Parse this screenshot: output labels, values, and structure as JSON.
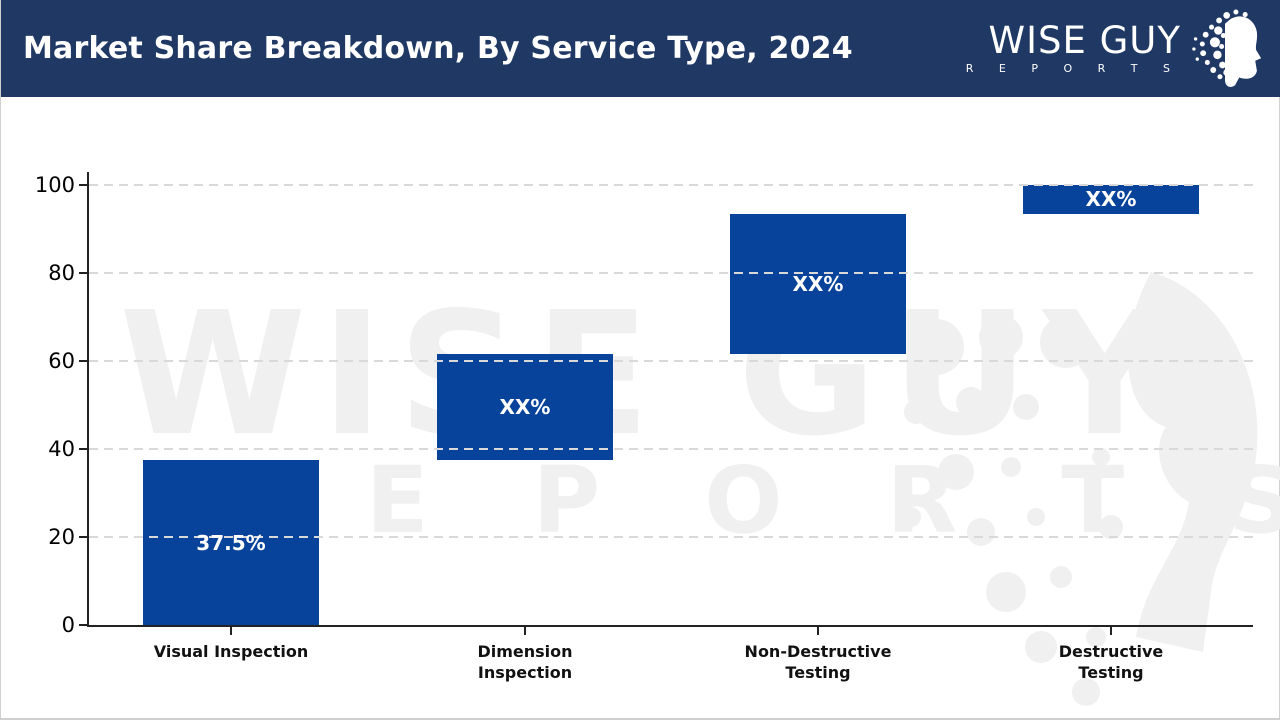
{
  "header": {
    "title": "Market Share Breakdown, By Service Type, 2024",
    "logo": {
      "line1": "WISE GUY",
      "line2": "R E P O R T S"
    }
  },
  "watermark": {
    "line1": "WISE GUY",
    "line2": "R E P O R T S"
  },
  "colors": {
    "header_bg": "#1F3864",
    "bar": "#07429B",
    "grid": "#D9D9D9",
    "axis": "#222222",
    "watermark": "#F0F0F0",
    "bar_label_text": "#FFFFFF",
    "title_text": "#FFFFFF"
  },
  "chart_data": {
    "type": "bar",
    "subtype": "waterfall",
    "title": "Market Share Breakdown, By Service Type, 2024",
    "categories": [
      "Visual Inspection",
      "Dimension\nInspection",
      "Non-Destructive\nTesting",
      "Destructive\nTesting"
    ],
    "segments": [
      {
        "category": "Visual Inspection",
        "start": 0,
        "end": 37.5,
        "label": "37.5%"
      },
      {
        "category": "Dimension Inspection",
        "start": 37.5,
        "end": 61.5,
        "label": "XX%"
      },
      {
        "category": "Non-Destructive Testing",
        "start": 61.5,
        "end": 93.5,
        "label": "XX%"
      },
      {
        "category": "Destructive Testing",
        "start": 93.5,
        "end": 100,
        "label": "XX%"
      }
    ],
    "yticks": [
      0,
      20,
      40,
      60,
      80,
      100
    ],
    "ylim": [
      0,
      103
    ],
    "xlabel": "",
    "ylabel": "",
    "grid": "horizontal-dashed",
    "legend": "none"
  }
}
